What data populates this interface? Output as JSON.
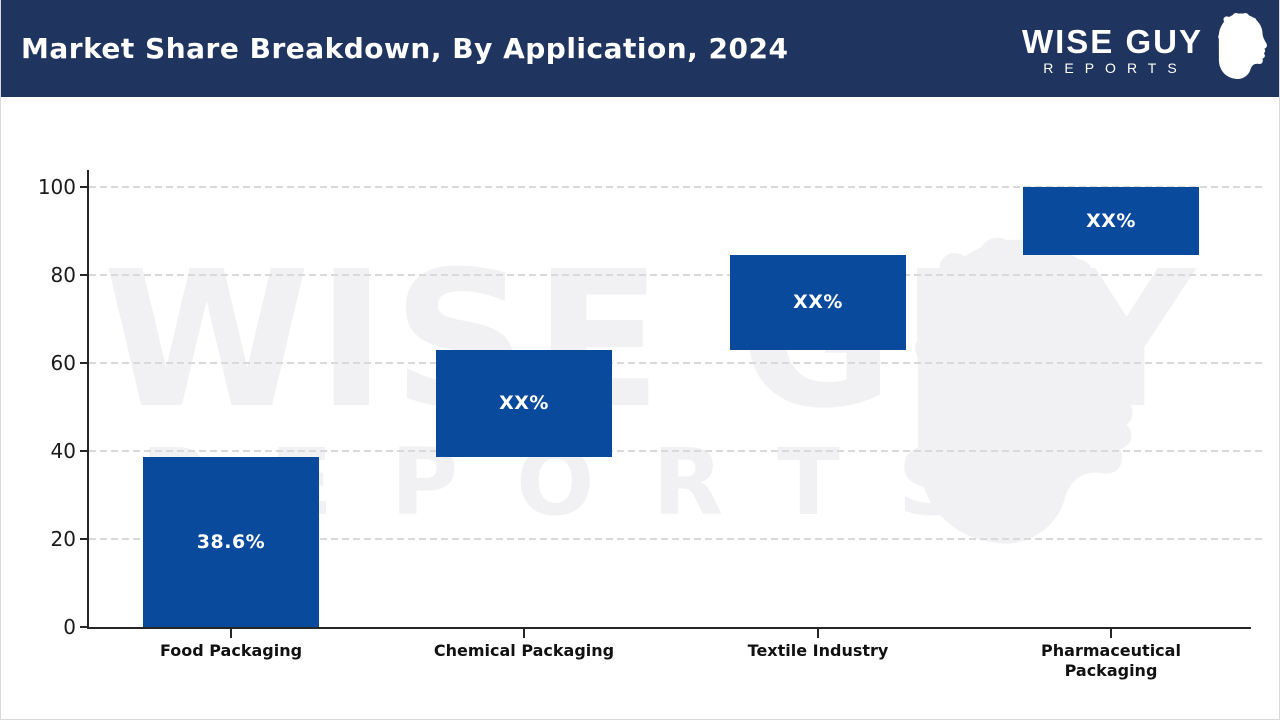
{
  "header": {
    "title": "Market Share Breakdown, By Application, 2024",
    "logo_line1": "WISE GUY",
    "logo_line2": "REPORTS"
  },
  "watermark": {
    "line1": "WISE GUY",
    "line2": "REPORTS"
  },
  "colors": {
    "header_bg": "#1f3560",
    "bar": "#0a4a9c",
    "grid": "#d9d9d9",
    "axis": "#262626",
    "tick_text": "#1a1a1a",
    "bar_label_text": "#ffffff",
    "watermark": "#f1f1f4"
  },
  "chart_data": {
    "type": "bar",
    "subtype": "waterfall-style floating percentage segments",
    "title": "Market Share Breakdown, By Application, 2024",
    "categories": [
      "Food Packaging",
      "Chemical Packaging",
      "Textile Industry",
      "Pharmaceutical Packaging"
    ],
    "series": [
      {
        "name": "Food Packaging",
        "start": 0,
        "end": 38.6,
        "label": "38.6%"
      },
      {
        "name": "Chemical Packaging",
        "start": 38.6,
        "end": 63,
        "label": "XX%"
      },
      {
        "name": "Textile Industry",
        "start": 63,
        "end": 84.5,
        "label": "XX%"
      },
      {
        "name": "Pharmaceutical Packaging",
        "start": 84.5,
        "end": 100,
        "label": "XX%"
      }
    ],
    "xlabel": "",
    "ylabel": "",
    "yticks": [
      0,
      20,
      40,
      60,
      80,
      100
    ],
    "ylim": [
      0,
      105
    ],
    "grid": "horizontal dashed",
    "legend": "none"
  }
}
